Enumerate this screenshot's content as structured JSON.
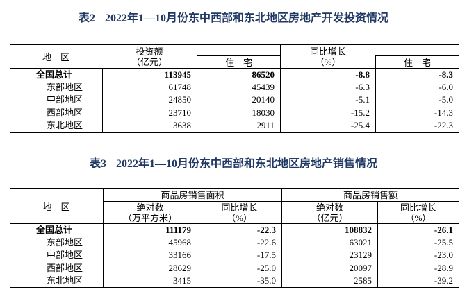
{
  "colors": {
    "title": "#1F3864",
    "text": "#000000",
    "border": "#000000",
    "background": "#ffffff"
  },
  "tables": [
    {
      "title_tag": "表2",
      "title": "2022年1—10月份东中西部和东北地区房地产开发投资情况",
      "header": {
        "region": "地　区",
        "group1": [
          "投资额",
          "（亿元）"
        ],
        "sub1": "住　宅",
        "group2": [
          "同比增长",
          "（%）"
        ],
        "sub2": "住　宅"
      },
      "rows": [
        {
          "region": "全国总计",
          "values": [
            "113945",
            "86520",
            "-8.8",
            "-8.3"
          ],
          "bold": true,
          "indent": false
        },
        {
          "region": "东部地区",
          "values": [
            "61748",
            "45439",
            "-6.3",
            "-6.0"
          ],
          "bold": false,
          "indent": true
        },
        {
          "region": "中部地区",
          "values": [
            "24850",
            "20140",
            "-5.1",
            "-5.0"
          ],
          "bold": false,
          "indent": true
        },
        {
          "region": "西部地区",
          "values": [
            "23710",
            "18030",
            "-15.2",
            "-14.3"
          ],
          "bold": false,
          "indent": true
        },
        {
          "region": "东北地区",
          "values": [
            "3638",
            "2911",
            "-25.4",
            "-22.3"
          ],
          "bold": false,
          "indent": true
        }
      ]
    },
    {
      "title_tag": "表3",
      "title": "2022年1—10月份东中西部和东北地区房地产销售情况",
      "header": {
        "region": "地　区",
        "group1": "商品房销售面积",
        "group2": "商品房销售额",
        "sub1": [
          "绝对数",
          "（万平方米）"
        ],
        "sub2": [
          "同比增长",
          "（%）"
        ],
        "sub3": [
          "绝对数",
          "（亿元）"
        ],
        "sub4": [
          "同比增长",
          "（%）"
        ]
      },
      "rows": [
        {
          "region": "全国总计",
          "values": [
            "111179",
            "-22.3",
            "108832",
            "-26.1"
          ],
          "bold": true,
          "indent": false
        },
        {
          "region": "东部地区",
          "values": [
            "45968",
            "-22.6",
            "63021",
            "-25.5"
          ],
          "bold": false,
          "indent": true
        },
        {
          "region": "中部地区",
          "values": [
            "33166",
            "-17.5",
            "23129",
            "-23.0"
          ],
          "bold": false,
          "indent": true
        },
        {
          "region": "西部地区",
          "values": [
            "28629",
            "-25.0",
            "20097",
            "-28.9"
          ],
          "bold": false,
          "indent": true
        },
        {
          "region": "东北地区",
          "values": [
            "3415",
            "-35.0",
            "2585",
            "-39.2"
          ],
          "bold": false,
          "indent": true
        }
      ]
    }
  ]
}
